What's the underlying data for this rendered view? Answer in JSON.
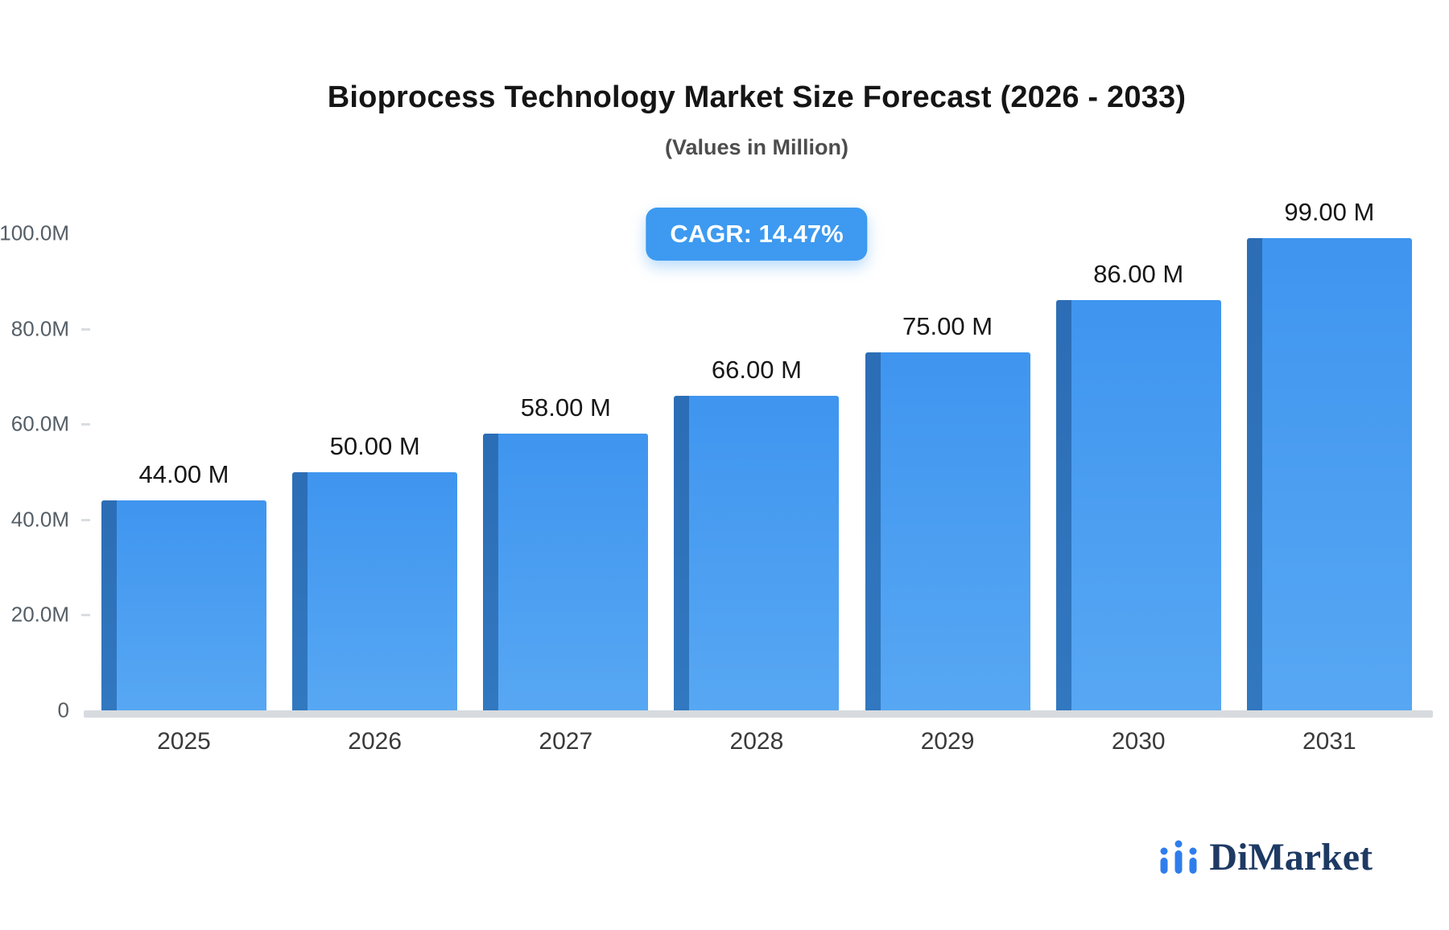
{
  "header": {
    "title": "Bioprocess Technology Market Size Forecast (2026 - 2033)",
    "subtitle": "(Values in Million)",
    "cagr_badge": "CAGR: 14.47%"
  },
  "brand": {
    "name": "DiMarket",
    "icon": "bar-chart-logo-icon"
  },
  "colors": {
    "bar_face": "#459cf2",
    "bar_side": "#2e6fb6",
    "badge_blue": "#3d9af0",
    "brand_text": "#1e3a63",
    "baseline": "#d7dbdf"
  },
  "chart_data": {
    "type": "bar",
    "title": "Bioprocess Technology Market Size Forecast (2026 - 2033)",
    "subtitle": "(Values in Million)",
    "categories": [
      "2025",
      "2026",
      "2027",
      "2028",
      "2029",
      "2030",
      "2031"
    ],
    "values": [
      44,
      50,
      58,
      66,
      75,
      86,
      99
    ],
    "value_labels": [
      "44.00 M",
      "50.00 M",
      "58.00 M",
      "66.00 M",
      "75.00 M",
      "86.00 M",
      "99.00 M"
    ],
    "xlabel": "",
    "ylabel": "",
    "ylim": [
      0,
      100
    ],
    "grid": false,
    "legend": "none",
    "yticks": [
      {
        "value": 0,
        "label": "0"
      },
      {
        "value": 20,
        "label": "20.0M"
      },
      {
        "value": 40,
        "label": "40.0M"
      },
      {
        "value": 60,
        "label": "60.0M"
      },
      {
        "value": 80,
        "label": "80.0M"
      },
      {
        "value": 100,
        "label": "100.0M"
      }
    ]
  }
}
